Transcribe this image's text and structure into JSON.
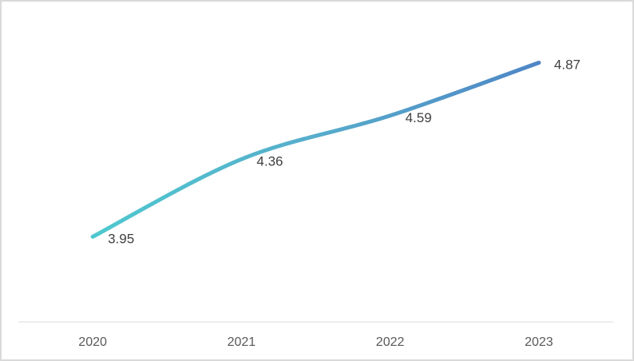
{
  "chart_data": {
    "type": "line",
    "title": "",
    "xlabel": "",
    "ylabel": "",
    "categories": [
      "2020",
      "2021",
      "2022",
      "2023"
    ],
    "series": [
      {
        "name": "value",
        "values": [
          3.95,
          4.36,
          4.59,
          4.87
        ],
        "labels": [
          "3.95",
          "4.36",
          "4.59",
          "4.87"
        ]
      }
    ],
    "ylim": [
      3.5,
      5.1
    ],
    "grid": false,
    "legend": "none",
    "y_axis_visible": false,
    "x_axis_visible": true,
    "line_smoothing": true,
    "data_labels_position": "right",
    "colors": {
      "line_gradient_start": "#4ec8ce",
      "line_gradient_mid": "#57aecc",
      "line_gradient_end": "#4e86c6",
      "axis_line": "#d9d9d9",
      "data_label_text": "#404040",
      "tick_label_text": "#595959",
      "background": "#ffffff",
      "frame_border": "#d9d9d9"
    }
  }
}
